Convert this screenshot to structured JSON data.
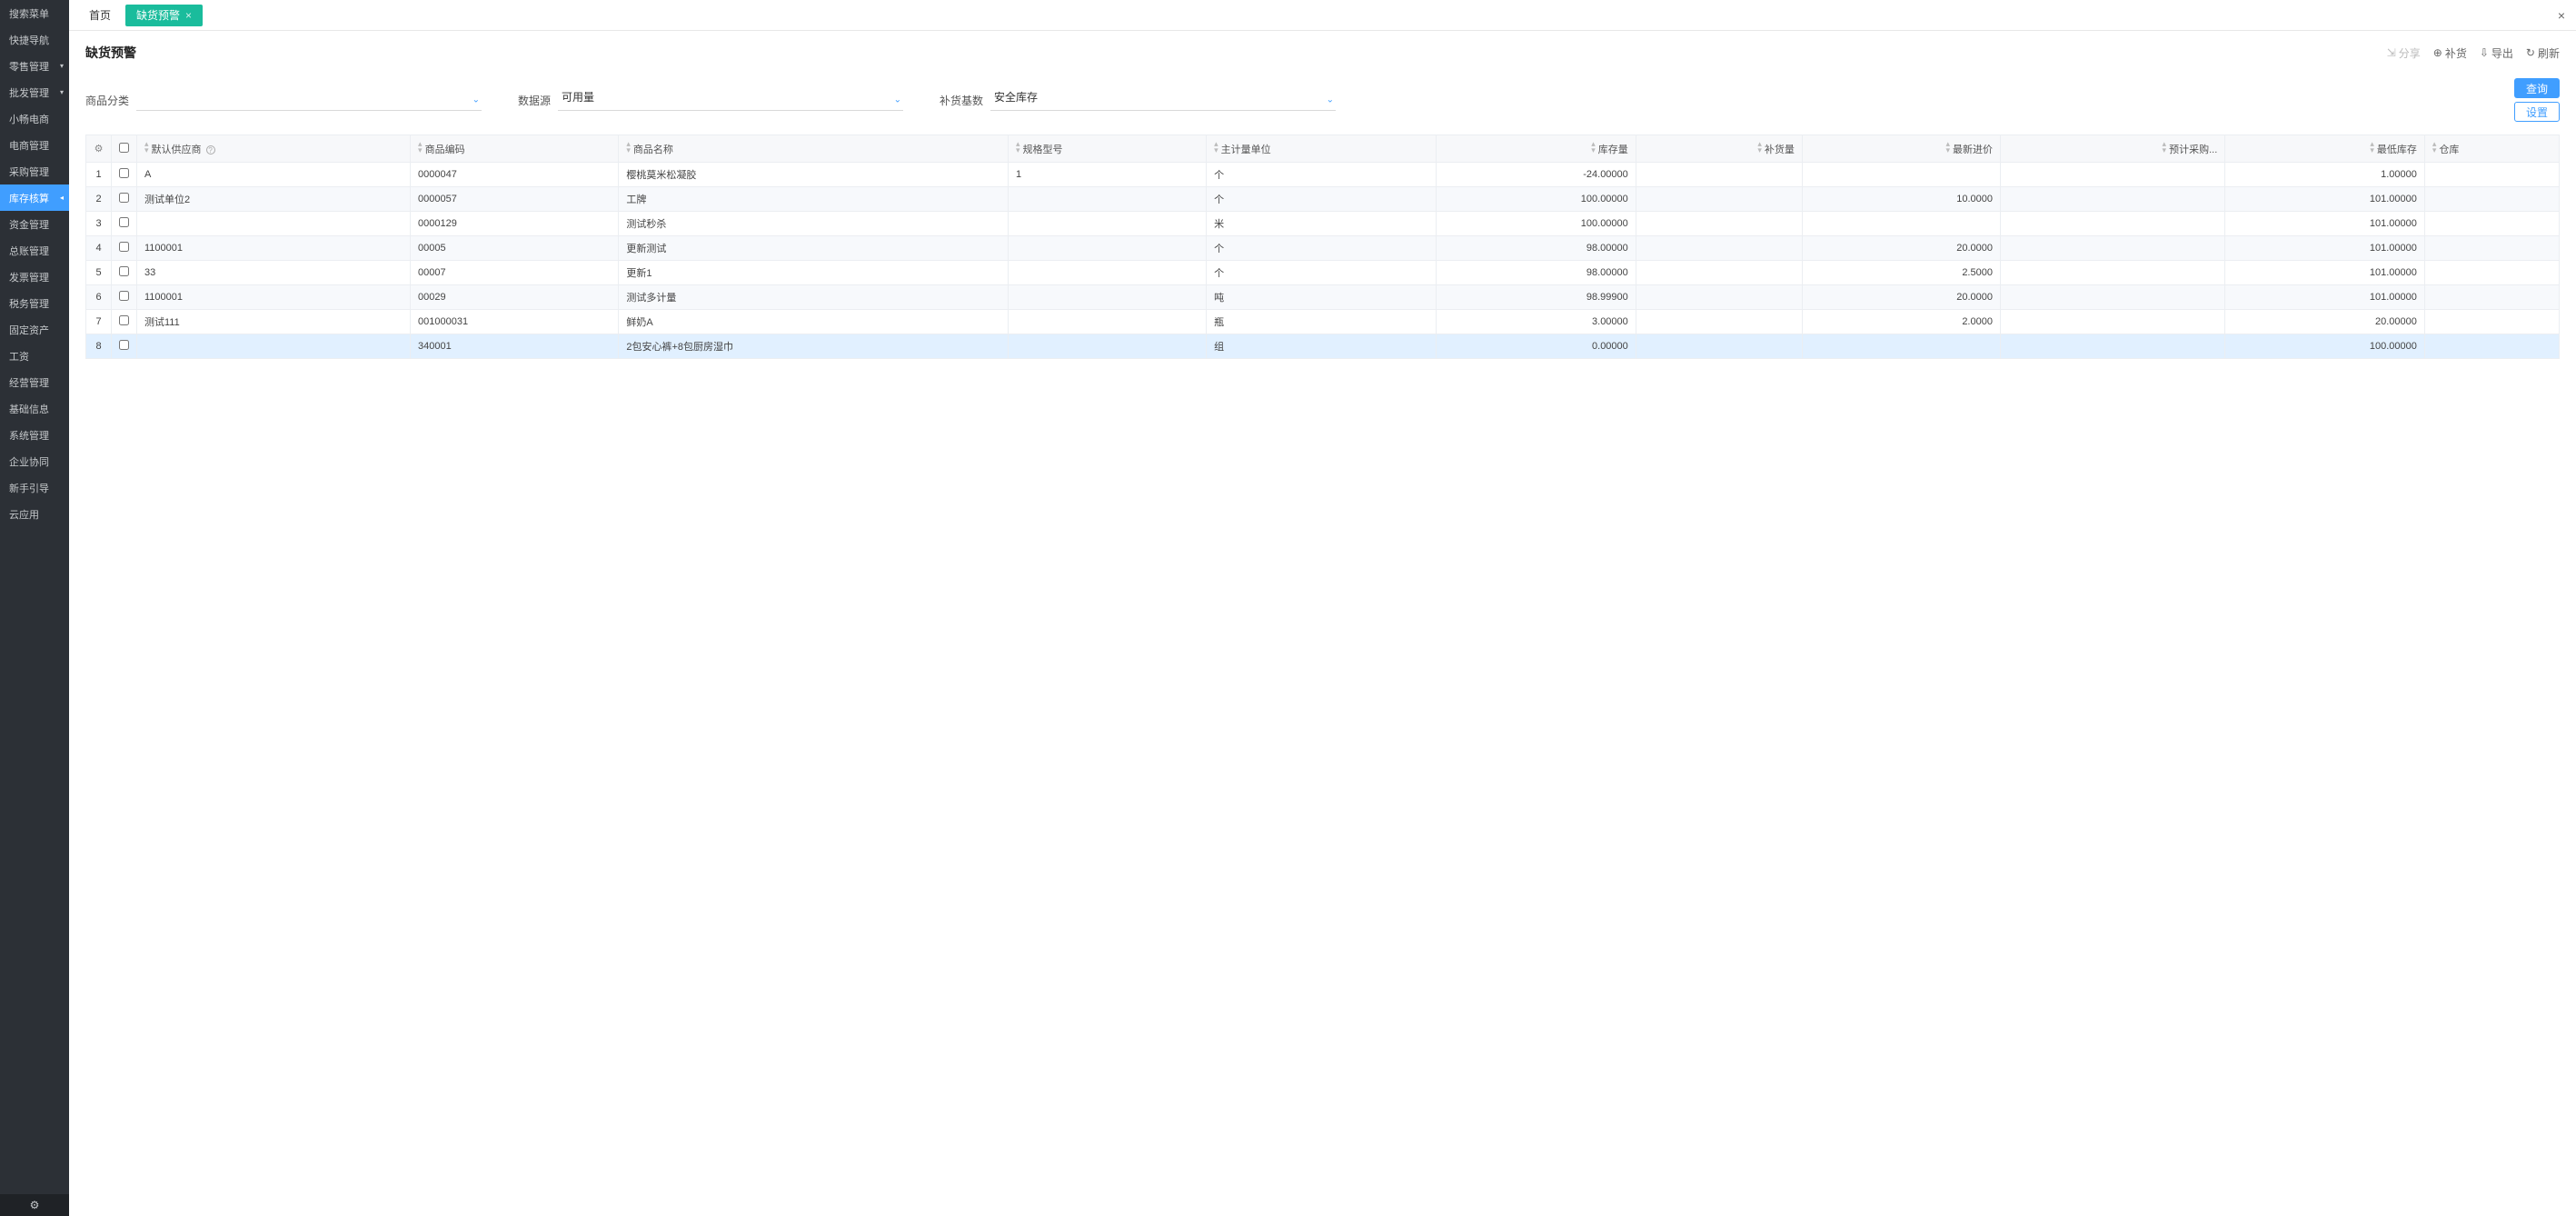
{
  "sidebar": {
    "items": [
      {
        "label": "搜索菜单",
        "expandable": false
      },
      {
        "label": "快捷导航",
        "expandable": false
      },
      {
        "label": "零售管理",
        "expandable": true
      },
      {
        "label": "批发管理",
        "expandable": true
      },
      {
        "label": "小畅电商",
        "expandable": false
      },
      {
        "label": "电商管理",
        "expandable": false
      },
      {
        "label": "采购管理",
        "expandable": false
      },
      {
        "label": "库存核算",
        "active": true,
        "expandable": false
      },
      {
        "label": "资金管理",
        "expandable": false
      },
      {
        "label": "总账管理",
        "expandable": false
      },
      {
        "label": "发票管理",
        "expandable": false
      },
      {
        "label": "税务管理",
        "expandable": false
      },
      {
        "label": "固定资产",
        "expandable": false
      },
      {
        "label": "工资",
        "expandable": false
      },
      {
        "label": "经营管理",
        "expandable": false
      },
      {
        "label": "基础信息",
        "expandable": false
      },
      {
        "label": "系统管理",
        "expandable": false
      },
      {
        "label": "企业协同",
        "expandable": false
      },
      {
        "label": "新手引导",
        "expandable": false
      },
      {
        "label": "云应用",
        "expandable": false
      }
    ]
  },
  "tabs": [
    {
      "label": "首页",
      "closable": false,
      "active": false
    },
    {
      "label": "缺货预警",
      "closable": true,
      "active": true
    }
  ],
  "page": {
    "title": "缺货预警",
    "actions": {
      "share": "分享",
      "restock": "补货",
      "export": "导出",
      "refresh": "刷新"
    }
  },
  "filters": {
    "category_label": "商品分类",
    "category_value": "",
    "datasource_label": "数据源",
    "datasource_value": "可用量",
    "restock_basis_label": "补货基数",
    "restock_basis_value": "安全库存",
    "query_btn": "查询",
    "settings_btn": "设置"
  },
  "table": {
    "columns": [
      {
        "key": "supplier",
        "label": "默认供应商",
        "help": true
      },
      {
        "key": "code",
        "label": "商品编码"
      },
      {
        "key": "name",
        "label": "商品名称"
      },
      {
        "key": "spec",
        "label": "规格型号"
      },
      {
        "key": "unit",
        "label": "主计量单位"
      },
      {
        "key": "stock",
        "label": "库存量",
        "align": "num"
      },
      {
        "key": "restock_qty",
        "label": "补货量",
        "align": "num"
      },
      {
        "key": "latest_price",
        "label": "最新进价",
        "align": "num"
      },
      {
        "key": "est_purchase",
        "label": "预计采购...",
        "align": "num"
      },
      {
        "key": "min_stock",
        "label": "最低库存",
        "align": "num"
      },
      {
        "key": "warehouse",
        "label": "仓库"
      }
    ],
    "rows": [
      {
        "idx": "1",
        "supplier": "A",
        "code": "0000047",
        "name": "樱桃莫米松凝胶",
        "spec": "1",
        "unit": "个",
        "stock": "-24.00000",
        "restock_qty": "",
        "latest_price": "",
        "est_purchase": "",
        "min_stock": "1.00000",
        "warehouse": ""
      },
      {
        "idx": "2",
        "supplier": "测试单位2",
        "code": "0000057",
        "name": "工牌",
        "spec": "",
        "unit": "个",
        "stock": "100.00000",
        "restock_qty": "",
        "latest_price": "10.0000",
        "est_purchase": "",
        "min_stock": "101.00000",
        "warehouse": ""
      },
      {
        "idx": "3",
        "supplier": "",
        "code": "0000129",
        "name": "测试秒杀",
        "spec": "",
        "unit": "米",
        "stock": "100.00000",
        "restock_qty": "",
        "latest_price": "",
        "est_purchase": "",
        "min_stock": "101.00000",
        "warehouse": ""
      },
      {
        "idx": "4",
        "supplier": "1100001",
        "code": "00005",
        "name": "更新测试",
        "spec": "",
        "unit": "个",
        "stock": "98.00000",
        "restock_qty": "",
        "latest_price": "20.0000",
        "est_purchase": "",
        "min_stock": "101.00000",
        "warehouse": ""
      },
      {
        "idx": "5",
        "supplier": "33",
        "code": "00007",
        "name": "更新1",
        "spec": "",
        "unit": "个",
        "stock": "98.00000",
        "restock_qty": "",
        "latest_price": "2.5000",
        "est_purchase": "",
        "min_stock": "101.00000",
        "warehouse": ""
      },
      {
        "idx": "6",
        "supplier": "1100001",
        "code": "00029",
        "name": "测试多计量",
        "spec": "",
        "unit": "吨",
        "stock": "98.99900",
        "restock_qty": "",
        "latest_price": "20.0000",
        "est_purchase": "",
        "min_stock": "101.00000",
        "warehouse": ""
      },
      {
        "idx": "7",
        "supplier": "测试111",
        "code": "001000031",
        "name": "鲜奶A",
        "spec": "",
        "unit": "瓶",
        "stock": "3.00000",
        "restock_qty": "",
        "latest_price": "2.0000",
        "est_purchase": "",
        "min_stock": "20.00000",
        "warehouse": ""
      },
      {
        "idx": "8",
        "supplier": "",
        "code": "340001",
        "name": "2包安心裤+8包厨房湿巾",
        "spec": "",
        "unit": "组",
        "stock": "0.00000",
        "restock_qty": "",
        "latest_price": "",
        "est_purchase": "",
        "min_stock": "100.00000",
        "warehouse": "",
        "selected": true
      }
    ]
  }
}
